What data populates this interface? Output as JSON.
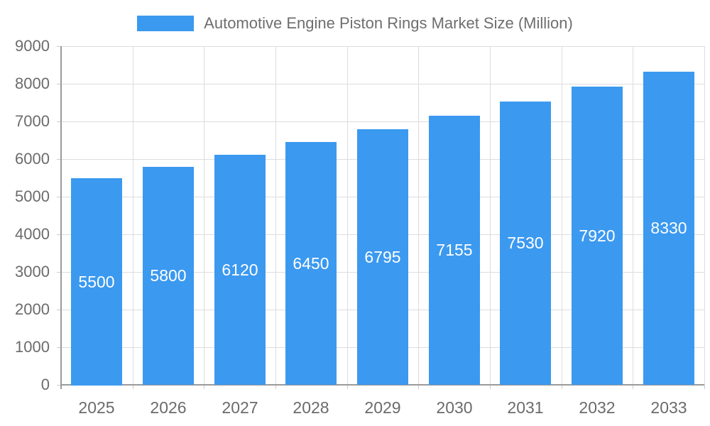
{
  "legend": {
    "label": "Automotive Engine Piston Rings Market Size (Million)"
  },
  "chart_data": {
    "type": "bar",
    "title": "Automotive Engine Piston Rings Market Size (Million)",
    "series_name": "Automotive Engine Piston Rings Market Size (Million)",
    "categories": [
      "2025",
      "2026",
      "2027",
      "2028",
      "2029",
      "2030",
      "2031",
      "2032",
      "2033"
    ],
    "values": [
      5500,
      5800,
      6120,
      6450,
      6795,
      7155,
      7530,
      7920,
      8330
    ],
    "bar_value_labels": [
      "5500",
      "5800",
      "6120",
      "6450",
      "6795",
      "7155",
      "7530",
      "7920",
      "8330"
    ],
    "xlabel": "",
    "ylabel": "",
    "ylim": [
      0,
      9000
    ],
    "ytick_interval": 1000,
    "yticks": [
      0,
      1000,
      2000,
      3000,
      4000,
      5000,
      6000,
      7000,
      8000,
      9000
    ],
    "grid": true,
    "legend_position": "top-center",
    "colors": {
      "bar": "#3b99f0",
      "bar_value_text": "#ffffff",
      "axis_text": "#6b6b6b",
      "legend_text": "#6e6e6e",
      "gridline": "#dddddd",
      "axis_line": "#9a9a9a",
      "tick": "#cccccc",
      "background": "#ffffff"
    }
  }
}
